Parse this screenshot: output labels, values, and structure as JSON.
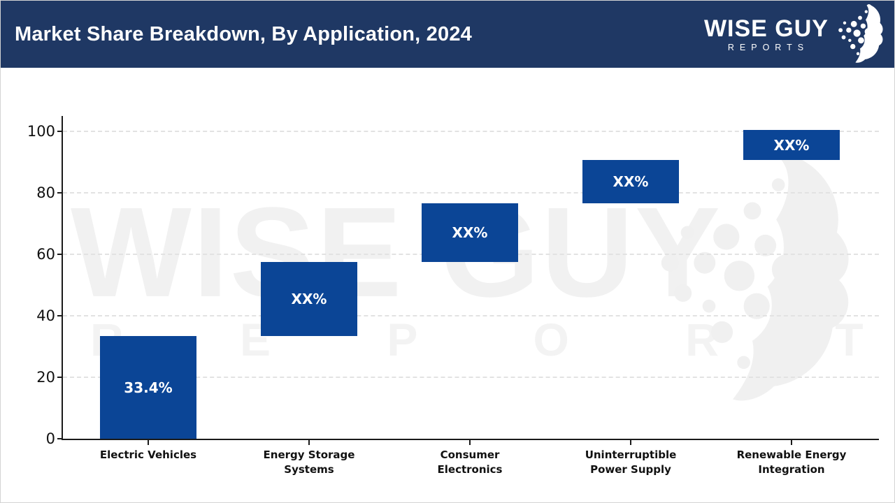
{
  "header": {
    "title": "Market Share Breakdown, By Application, 2024",
    "bg_color": "#1f3864",
    "logo": {
      "line1": "WISE GUY",
      "line2": "REPORTS"
    }
  },
  "watermark": {
    "line1": "WISE GUY",
    "line2": "R E P O R T S"
  },
  "chart_data": {
    "type": "bar",
    "variant": "waterfall",
    "title": "Market Share Breakdown, By Application, 2024",
    "categories": [
      {
        "name": "Electric Vehicles",
        "lines": [
          "Electric Vehicles"
        ]
      },
      {
        "name": "Energy Storage Systems",
        "lines": [
          "Energy Storage",
          "Systems"
        ]
      },
      {
        "name": "Consumer Electronics",
        "lines": [
          "Consumer",
          "Electronics"
        ]
      },
      {
        "name": "Uninterruptible Power Supply",
        "lines": [
          "Uninterruptible",
          "Power Supply"
        ]
      },
      {
        "name": "Renewable Energy Integration",
        "lines": [
          "Renewable Energy",
          "Integration"
        ]
      }
    ],
    "segments": [
      {
        "category": "Electric Vehicles",
        "start": 0,
        "end": 33.4,
        "label": "33.4%"
      },
      {
        "category": "Energy Storage Systems",
        "start": 33.4,
        "end": 57.5,
        "label": "XX%"
      },
      {
        "category": "Consumer Electronics",
        "start": 57.5,
        "end": 76.5,
        "label": "XX%"
      },
      {
        "category": "Uninterruptible Power Supply",
        "start": 76.5,
        "end": 90.6,
        "label": "XX%"
      },
      {
        "category": "Renewable Energy Integration",
        "start": 90.6,
        "end": 100.4,
        "label": "XX%"
      }
    ],
    "ylim": [
      0,
      100
    ],
    "yticks": [
      0,
      20,
      40,
      60,
      80,
      100
    ],
    "xlabel": "",
    "ylabel": "",
    "grid": {
      "horizontal": true,
      "style": "dashed",
      "color": "#e2e2e2"
    },
    "legend": "none",
    "bar_color": "#0b4596",
    "bar_label_color": "#ffffff"
  }
}
